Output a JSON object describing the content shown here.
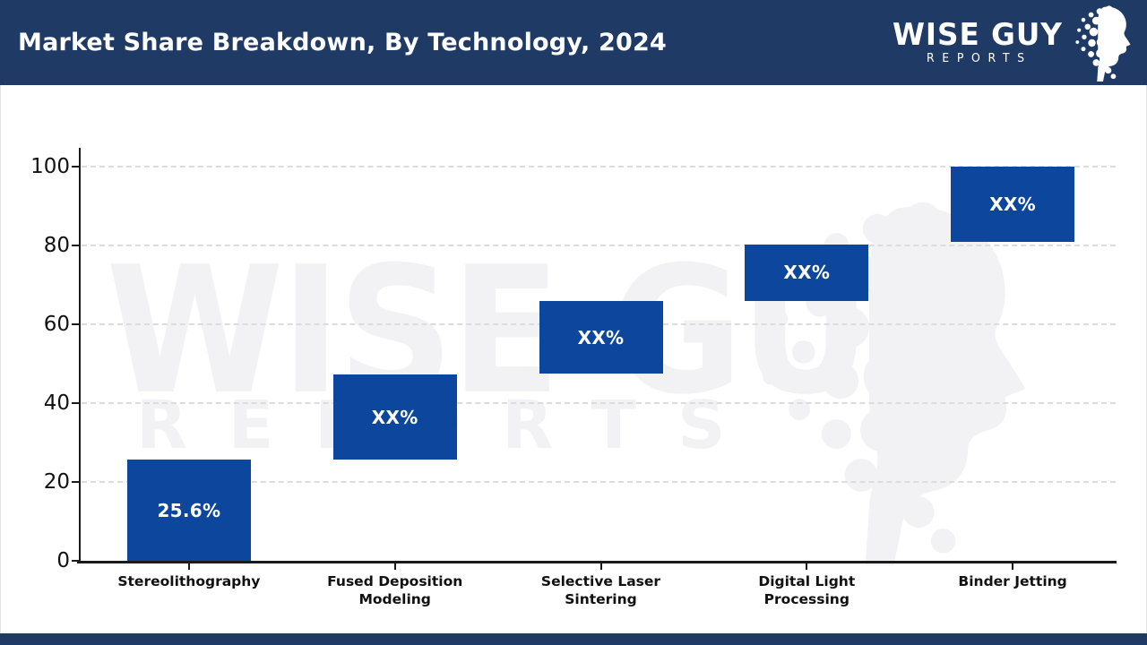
{
  "header": {
    "title": "Market Share Breakdown, By Technology, 2024",
    "logo": {
      "primary": "WISE GUY",
      "secondary": "REPORTS"
    }
  },
  "watermark": {
    "primary": "WISE GUY",
    "secondary": "REPORTS"
  },
  "footer": {
    "bg_color": "#203a66"
  },
  "colors": {
    "header_bg": "#203a66",
    "bar": "#0c479d",
    "bar_label": "#ffffff",
    "grid": "#dcdcdc",
    "axis": "#1a1a1a",
    "watermark": "#f2f2f4"
  },
  "chart_data": {
    "type": "bar",
    "variant": "floating-waterfall",
    "title": "Market Share Breakdown, By Technology, 2024",
    "categories": [
      "Stereolithography",
      "Fused Deposition Modeling",
      "Selective Laser Sintering",
      "Digital Light Processing",
      "Binder Jetting"
    ],
    "category_lines": [
      [
        "Stereolithography"
      ],
      [
        "Fused Deposition",
        "Modeling"
      ],
      [
        "Selective Laser",
        "Sintering"
      ],
      [
        "Digital Light",
        "Processing"
      ],
      [
        "Binder Jetting"
      ]
    ],
    "segments": [
      {
        "category": "Stereolithography",
        "start": 0,
        "end": 25.6,
        "label": "25.6%"
      },
      {
        "category": "Fused Deposition Modeling",
        "start": 25.6,
        "end": 47.3,
        "label": "XX%"
      },
      {
        "category": "Selective Laser Sintering",
        "start": 47.5,
        "end": 65.8,
        "label": "XX%"
      },
      {
        "category": "Digital Light Processing",
        "start": 66.0,
        "end": 80.2,
        "label": "XX%"
      },
      {
        "category": "Binder Jetting",
        "start": 80.9,
        "end": 100.0,
        "label": "XX%"
      }
    ],
    "ylim": [
      0,
      100
    ],
    "yticks": [
      0,
      20,
      40,
      60,
      80,
      100
    ],
    "xlabel": "",
    "ylabel": "",
    "grid": {
      "horizontal": true,
      "style": "dashed"
    },
    "legend": "none"
  }
}
